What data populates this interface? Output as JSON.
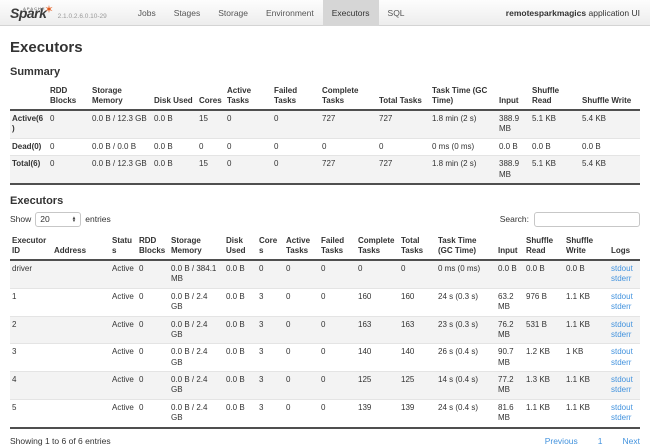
{
  "navbar": {
    "apache_label": "APACHE",
    "logo_text": "Spark",
    "version": "2.1.0.2.6.0.10-29",
    "items": [
      {
        "label": "Jobs",
        "active": false
      },
      {
        "label": "Stages",
        "active": false
      },
      {
        "label": "Storage",
        "active": false
      },
      {
        "label": "Environment",
        "active": false
      },
      {
        "label": "Executors",
        "active": true
      },
      {
        "label": "SQL",
        "active": false
      }
    ],
    "app_name": "remotesparkmagics",
    "app_suffix": " application UI"
  },
  "page": {
    "title": "Executors"
  },
  "summary": {
    "heading": "Summary",
    "columns": [
      "",
      "RDD Blocks",
      "Storage Memory",
      "Disk Used",
      "Cores",
      "Active Tasks",
      "Failed Tasks",
      "Complete Tasks",
      "Total Tasks",
      "Task Time (GC Time)",
      "Input",
      "Shuffle Read",
      "Shuffle Write"
    ],
    "rows": [
      {
        "label": "Active(6)",
        "cells": [
          "0",
          "0.0 B / 12.3 GB",
          "0.0 B",
          "15",
          "0",
          "0",
          "727",
          "727",
          "1.8 min (2 s)",
          "388.9 MB",
          "5.1 KB",
          "5.4 KB"
        ]
      },
      {
        "label": "Dead(0)",
        "cells": [
          "0",
          "0.0 B / 0.0 B",
          "0.0 B",
          "0",
          "0",
          "0",
          "0",
          "0",
          "0 ms (0 ms)",
          "0.0 B",
          "0.0 B",
          "0.0 B"
        ]
      },
      {
        "label": "Total(6)",
        "cells": [
          "0",
          "0.0 B / 12.3 GB",
          "0.0 B",
          "15",
          "0",
          "0",
          "727",
          "727",
          "1.8 min (2 s)",
          "388.9 MB",
          "5.1 KB",
          "5.4 KB"
        ]
      }
    ]
  },
  "executors": {
    "heading": "Executors",
    "show_label": "Show",
    "entries_value": "20",
    "entries_label": "entries",
    "search_label": "Search:",
    "search_value": "",
    "columns": [
      "Executor ID",
      "Address",
      "Status",
      "RDD Blocks",
      "Storage Memory",
      "Disk Used",
      "Cores",
      "Active Tasks",
      "Failed Tasks",
      "Complete Tasks",
      "Total Tasks",
      "Task Time (GC Time)",
      "Input",
      "Shuffle Read",
      "Shuffle Write",
      "Logs"
    ],
    "rows": [
      {
        "cells": [
          "driver",
          "",
          "Active",
          "0",
          "0.0 B / 384.1 MB",
          "0.0 B",
          "0",
          "0",
          "0",
          "0",
          "0",
          "0 ms (0 ms)",
          "0.0 B",
          "0.0 B",
          "0.0 B"
        ],
        "logs": [
          "stdout",
          "stderr"
        ]
      },
      {
        "cells": [
          "1",
          "",
          "Active",
          "0",
          "0.0 B / 2.4 GB",
          "0.0 B",
          "3",
          "0",
          "0",
          "160",
          "160",
          "24 s (0.3 s)",
          "63.2 MB",
          "976 B",
          "1.1 KB"
        ],
        "logs": [
          "stdout",
          "stderr"
        ]
      },
      {
        "cells": [
          "2",
          "",
          "Active",
          "0",
          "0.0 B / 2.4 GB",
          "0.0 B",
          "3",
          "0",
          "0",
          "163",
          "163",
          "23 s (0.3 s)",
          "76.2 MB",
          "531 B",
          "1.1 KB"
        ],
        "logs": [
          "stdout",
          "stderr"
        ]
      },
      {
        "cells": [
          "3",
          "",
          "Active",
          "0",
          "0.0 B / 2.4 GB",
          "0.0 B",
          "3",
          "0",
          "0",
          "140",
          "140",
          "26 s (0.4 s)",
          "90.7 MB",
          "1.2 KB",
          "1 KB"
        ],
        "logs": [
          "stdout",
          "stderr"
        ]
      },
      {
        "cells": [
          "4",
          "",
          "Active",
          "0",
          "0.0 B / 2.4 GB",
          "0.0 B",
          "3",
          "0",
          "0",
          "125",
          "125",
          "14 s (0.4 s)",
          "77.2 MB",
          "1.3 KB",
          "1.1 KB"
        ],
        "logs": [
          "stdout",
          "stderr"
        ]
      },
      {
        "cells": [
          "5",
          "",
          "Active",
          "0",
          "0.0 B / 2.4 GB",
          "0.0 B",
          "3",
          "0",
          "0",
          "139",
          "139",
          "24 s (0.4 s)",
          "81.6 MB",
          "1.1 KB",
          "1.1 KB"
        ],
        "logs": [
          "stdout",
          "stderr"
        ]
      }
    ],
    "footer": {
      "info": "Showing 1 to 6 of 6 entries",
      "previous_label": "Previous",
      "page_number": "1",
      "next_label": "Next"
    }
  }
}
